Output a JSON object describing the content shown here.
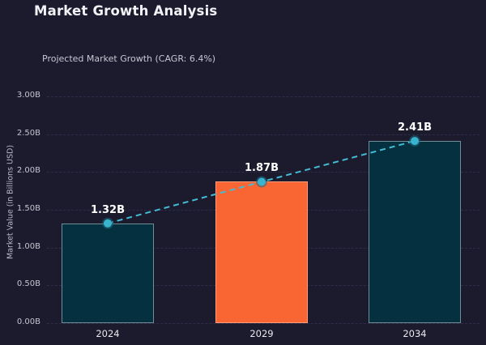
{
  "chart": {
    "title": "Market Growth Analysis",
    "subtitle": "Projected Market Growth (CAGR: 6.4%)",
    "y_axis_label": "Market Value (in Billions USD)"
  },
  "chart_data": {
    "type": "bar",
    "title": "Market Growth Analysis",
    "subtitle": "Projected Market Growth (CAGR: 6.4%)",
    "categories": [
      "2024",
      "2029",
      "2034"
    ],
    "series": [
      {
        "name": "Market Value",
        "values": [
          1.32,
          1.87,
          2.41
        ]
      }
    ],
    "data_labels": [
      "1.32B",
      "1.87B",
      "2.41B"
    ],
    "trend_line": {
      "style": "dashed",
      "color": "#43bcd4",
      "values": [
        1.32,
        1.87,
        2.41
      ]
    },
    "xlabel": "",
    "ylabel": "Market Value (in Billions USD)",
    "ylim": [
      0,
      3.0
    ],
    "yticks": [
      0,
      0.5,
      1.0,
      1.5,
      2.0,
      2.5,
      3.0
    ],
    "ytick_labels": [
      "0.00B",
      "0.50B",
      "1.00B",
      "1.50B",
      "2.00B",
      "2.50B",
      "3.00B"
    ],
    "grid": true,
    "legend": false
  },
  "colors": {
    "background": "#1c1b2e",
    "bar_teal": "#05303f",
    "bar_accent": "#f96634",
    "bar_colors": [
      "#05303f",
      "#f96634",
      "#05303f"
    ],
    "line": "#43bcd4",
    "marker_fill": "#38b4ce",
    "marker_ring": "#1d6a80",
    "gridline": "#2e2d49",
    "title_text": "#f2f2f6",
    "muted_text": "#c7c7d3"
  }
}
